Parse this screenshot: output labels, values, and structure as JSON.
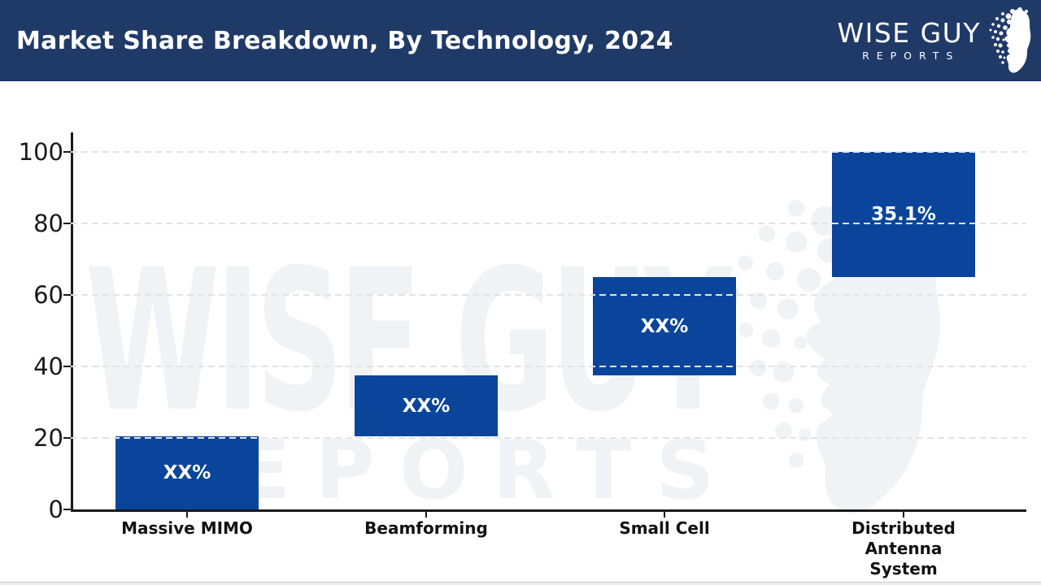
{
  "header": {
    "title": "Market Share Breakdown, By Technology, 2024",
    "logo": {
      "line1": "WISE GUY",
      "line2": "REPORTS"
    }
  },
  "watermark": {
    "line1": "WISE GUY",
    "line2": "REPORTS"
  },
  "colors": {
    "header_bg": "#203a68",
    "bar": "#0a459b",
    "grid": "#e3e3e3",
    "axis": "#1a1a1a",
    "tick_text": "#1a1a1a",
    "bar_label_text": "#ffffff",
    "watermark": "#f1f2f5"
  },
  "chart_data": {
    "type": "bar",
    "subtype": "floating-waterfall",
    "title": "Market Share Breakdown, By Technology, 2024",
    "categories": [
      "Massive MIMO",
      "Beamforming",
      "Small Cell",
      "Distributed Antenna System"
    ],
    "bars": [
      {
        "category": "Massive MIMO",
        "start": 0,
        "end": 20.5,
        "label": "XX%"
      },
      {
        "category": "Beamforming",
        "start": 20.5,
        "end": 37.4,
        "label": "XX%"
      },
      {
        "category": "Small Cell",
        "start": 37.4,
        "end": 64.9,
        "label": "XX%"
      },
      {
        "category": "Distributed Antenna System",
        "start": 64.9,
        "end": 100,
        "label": "35.1%"
      }
    ],
    "yticks": [
      0,
      20,
      40,
      60,
      80,
      100
    ],
    "ylim": [
      0,
      105
    ],
    "grid": "horizontal-dashed",
    "legend": "none",
    "xlabel": "",
    "ylabel": ""
  }
}
